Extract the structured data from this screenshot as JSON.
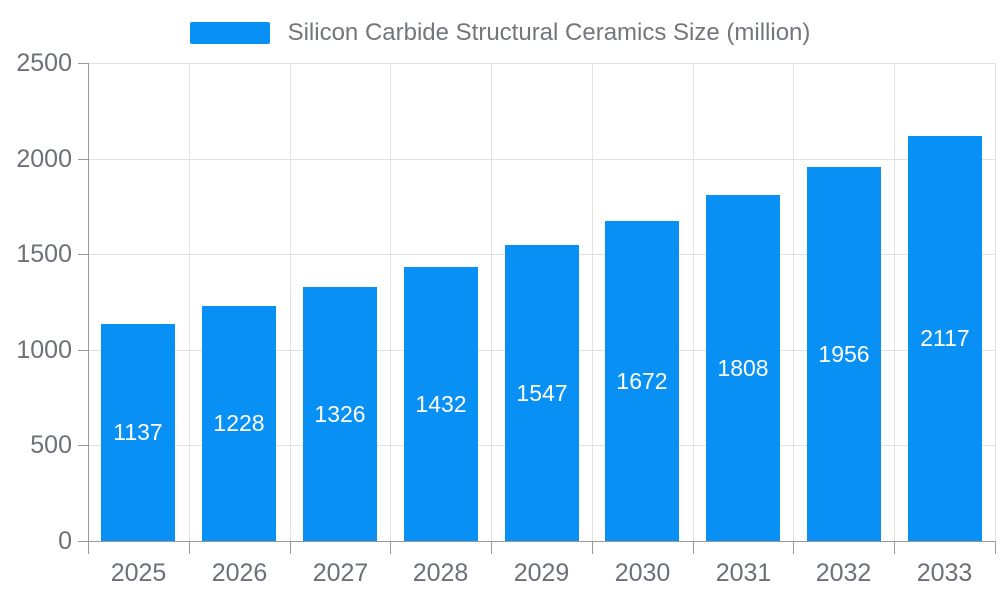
{
  "legend": {
    "label": "Silicon Carbide Structural Ceramics Size (million)"
  },
  "chart_data": {
    "type": "bar",
    "title": "Silicon Carbide Structural Ceramics Size (million)",
    "series_name": "Silicon Carbide Structural Ceramics Size (million)",
    "categories": [
      "2025",
      "2026",
      "2027",
      "2028",
      "2029",
      "2030",
      "2031",
      "2032",
      "2033"
    ],
    "values": [
      1137,
      1228,
      1326,
      1432,
      1547,
      1672,
      1808,
      1956,
      2117
    ],
    "xlabel": "",
    "ylabel": "",
    "ylim": [
      0,
      2500
    ],
    "y_ticks": [
      0,
      500,
      1000,
      1500,
      2000,
      2500
    ],
    "grid": true,
    "legend_position": "top-center",
    "value_labels": "inside-center",
    "colors": {
      "bar": "#0890F5",
      "value_label": "#FFFFFF",
      "axis_label": "#6E7079",
      "legend_text": "#73767A",
      "grid_line": "#E2E2E2",
      "axis_line": "#999999",
      "background": "#FFFFFF"
    }
  }
}
